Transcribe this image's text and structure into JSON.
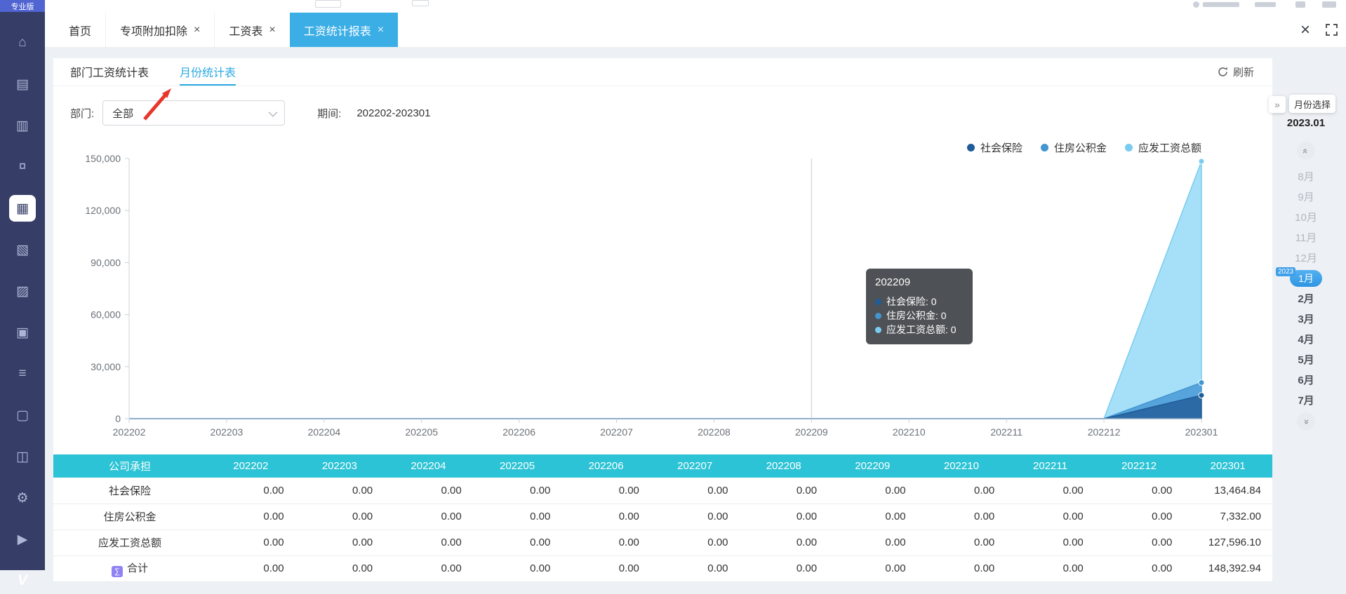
{
  "colors": {
    "accent_tab": "#3caee6",
    "subtab_active": "#2ca9e2",
    "table_header": "#2bc3d5",
    "sidebar_bg": "#363d66",
    "month_active": "#3f9fe8"
  },
  "sidebar": {
    "badge": "专业版",
    "active_index": 4,
    "icons": [
      "home-icon",
      "voucher-icon",
      "report-chart-icon",
      "cashier-icon",
      "invoice-icon",
      "statement-icon",
      "inventory-icon",
      "fixed-assets-icon",
      "ledger-icon",
      "checkout-icon",
      "contacts-icon",
      "settings-icon",
      "tutorial-video-icon",
      "brand-v-icon"
    ]
  },
  "tabbar": {
    "tabs": [
      {
        "label": "首页",
        "closable": false,
        "active": false
      },
      {
        "label": "专项附加扣除",
        "closable": true,
        "active": false
      },
      {
        "label": "工资表",
        "closable": true,
        "active": false
      },
      {
        "label": "工资统计报表",
        "closable": true,
        "active": true
      }
    ],
    "close_label": "×"
  },
  "subtabs": [
    {
      "label": "部门工资统计表",
      "active": false
    },
    {
      "label": "月份统计表",
      "active": true
    }
  ],
  "toolbar": {
    "refresh_label": "刷新"
  },
  "filters": {
    "department_label": "部门:",
    "department_value": "全部",
    "period_label": "期间:",
    "period_value": "202202-202301"
  },
  "chart_data": {
    "type": "area",
    "stacked": true,
    "categories": [
      "202202",
      "202203",
      "202204",
      "202205",
      "202206",
      "202207",
      "202208",
      "202209",
      "202210",
      "202211",
      "202212",
      "202301"
    ],
    "series": [
      {
        "name": "社会保险",
        "color": "#1f5c99",
        "area_color": "#2c6aa5",
        "values": [
          0,
          0,
          0,
          0,
          0,
          0,
          0,
          0,
          0,
          0,
          0,
          13464.84
        ]
      },
      {
        "name": "住房公积金",
        "color": "#4296d2",
        "area_color": "#57a4dc",
        "values": [
          0,
          0,
          0,
          0,
          0,
          0,
          0,
          0,
          0,
          0,
          0,
          7332.0
        ]
      },
      {
        "name": "应发工资总额",
        "color": "#79ccf0",
        "area_color": "#a6e0f8",
        "values": [
          0,
          0,
          0,
          0,
          0,
          0,
          0,
          0,
          0,
          0,
          0,
          127596.1
        ]
      }
    ],
    "ylim": [
      0,
      150000
    ],
    "yticks": [
      0,
      30000,
      60000,
      90000,
      120000,
      150000
    ],
    "pointer_index": 7,
    "legend_position": "top-right",
    "grid": false
  },
  "tooltip": {
    "title": "202209",
    "rows": [
      {
        "label": "社会保险",
        "value": "0"
      },
      {
        "label": "住房公积金",
        "value": "0"
      },
      {
        "label": "应发工资总额",
        "value": "0"
      }
    ]
  },
  "table": {
    "header": [
      "公司承担",
      "202202",
      "202203",
      "202204",
      "202205",
      "202206",
      "202207",
      "202208",
      "202209",
      "202210",
      "202211",
      "202212",
      "202301"
    ],
    "rows": [
      {
        "label": "社会保险",
        "has_icon": false,
        "values": [
          "0.00",
          "0.00",
          "0.00",
          "0.00",
          "0.00",
          "0.00",
          "0.00",
          "0.00",
          "0.00",
          "0.00",
          "0.00",
          "13,464.84"
        ]
      },
      {
        "label": "住房公积金",
        "has_icon": false,
        "values": [
          "0.00",
          "0.00",
          "0.00",
          "0.00",
          "0.00",
          "0.00",
          "0.00",
          "0.00",
          "0.00",
          "0.00",
          "0.00",
          "7,332.00"
        ]
      },
      {
        "label": "应发工资总额",
        "has_icon": false,
        "values": [
          "0.00",
          "0.00",
          "0.00",
          "0.00",
          "0.00",
          "0.00",
          "0.00",
          "0.00",
          "0.00",
          "0.00",
          "0.00",
          "127,596.10"
        ]
      },
      {
        "label": "合计",
        "has_icon": true,
        "values": [
          "0.00",
          "0.00",
          "0.00",
          "0.00",
          "0.00",
          "0.00",
          "0.00",
          "0.00",
          "0.00",
          "0.00",
          "0.00",
          "148,392.94"
        ]
      }
    ]
  },
  "month_panel": {
    "collapse_icon": "»",
    "title": "月份选择",
    "current": "2023.01",
    "year_badge": "2023",
    "months": [
      {
        "label": "8月",
        "state": "muted"
      },
      {
        "label": "9月",
        "state": "muted"
      },
      {
        "label": "10月",
        "state": "muted"
      },
      {
        "label": "11月",
        "state": "muted"
      },
      {
        "label": "12月",
        "state": "muted"
      },
      {
        "label": "1月",
        "state": "active"
      },
      {
        "label": "2月",
        "state": "normal"
      },
      {
        "label": "3月",
        "state": "normal"
      },
      {
        "label": "4月",
        "state": "normal"
      },
      {
        "label": "5月",
        "state": "normal"
      },
      {
        "label": "6月",
        "state": "normal"
      },
      {
        "label": "7月",
        "state": "normal"
      }
    ]
  }
}
